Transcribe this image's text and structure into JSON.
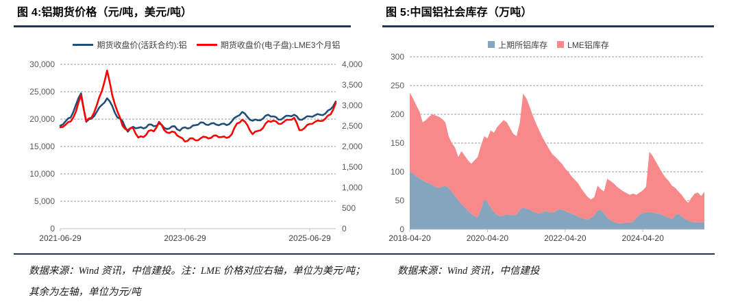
{
  "figure4": {
    "title": "图 4:铝期货价格（元/吨，美元/吨）",
    "source_note": "数据来源：Wind 资讯，中信建投。注：LME 价格对应右轴，单位为美元/吨；其余为左轴，单位为元/吨"
  },
  "figure5": {
    "title": "图 5:中国铝社会库存（万吨）",
    "source_note": "数据来源：Wind 资讯，中信建投"
  },
  "styles": {
    "accent_rule": "#17375e",
    "grid_color": "#999999",
    "axis_line_color": "#bfbfbf",
    "y_tick_label_color": "#595959",
    "x_tick_label_color": "#404040"
  },
  "chart_data": [
    {
      "type": "line",
      "title": "图 4:铝期货价格（元/吨，美元/吨）",
      "grid": "horizontal-dashed",
      "legend_position": "top-center",
      "left_axis": {
        "min": 0,
        "max": 30000,
        "unit": "元/吨",
        "tick_labels": [
          "0",
          "5,000",
          "10,000",
          "15,000",
          "20,000",
          "25,000",
          "30,000"
        ]
      },
      "right_axis": {
        "min": 0,
        "max": 4000,
        "unit": "美元/吨",
        "tick_labels": [
          "0",
          "500",
          "1,000",
          "1,500",
          "2,000",
          "2,500",
          "3,000",
          "3,500",
          "4,000"
        ]
      },
      "x_start_month": "2021-06",
      "x_tick_labels": [
        "2021-06-29",
        "2023-06-29",
        "2025-06-29"
      ],
      "x_tick_indices": [
        0,
        24,
        48
      ],
      "series": [
        {
          "name": "期货收盘价(活跃合约):铝",
          "color": "#1f4e79",
          "axis": "left",
          "values": [
            18800,
            19600,
            20300,
            22600,
            24700,
            19500,
            20100,
            21300,
            22600,
            23800,
            22400,
            20300,
            19600,
            17700,
            18600,
            18400,
            18300,
            19000,
            18700,
            19200,
            18400,
            18300,
            18700,
            17900,
            18500,
            18400,
            18900,
            19400,
            19000,
            19200,
            19000,
            19100,
            18900,
            19600,
            20500,
            21300,
            20400,
            19700,
            19800,
            20100,
            20800,
            20500,
            19900,
            20300,
            20600,
            20800,
            19900,
            20200,
            20500,
            20700,
            20800,
            21000,
            21800,
            23200
          ]
        },
        {
          "name": "期货收盘价(电子盘):LME3个月铝",
          "color": "#ff0000",
          "axis": "right",
          "values": [
            2470,
            2530,
            2610,
            2850,
            3250,
            2620,
            2700,
            3000,
            3350,
            3850,
            3250,
            2850,
            2500,
            2400,
            2450,
            2220,
            2230,
            2380,
            2370,
            2600,
            2400,
            2330,
            2350,
            2230,
            2120,
            2200,
            2150,
            2200,
            2230,
            2210,
            2270,
            2230,
            2210,
            2300,
            2560,
            2650,
            2520,
            2300,
            2380,
            2450,
            2620,
            2630,
            2550,
            2600,
            2650,
            2700,
            2400,
            2450,
            2550,
            2600,
            2620,
            2680,
            2780,
            3060
          ]
        }
      ]
    },
    {
      "type": "area",
      "stacked": true,
      "title": "图 5:中国铝社会库存（万吨）",
      "grid": "horizontal-dashed",
      "legend_position": "top-center",
      "y_axis": {
        "min": 0,
        "max": 300,
        "unit": "万吨",
        "tick_labels": [
          "0",
          "50",
          "100",
          "150",
          "200",
          "250",
          "300"
        ]
      },
      "x_start_month": "2018-04",
      "x_tick_labels": [
        "2018-04-20",
        "2020-04-20",
        "2022-04-20",
        "2024-04-20"
      ],
      "x_tick_indices": [
        0,
        24,
        48,
        72
      ],
      "series": [
        {
          "name": "上期所铝库存",
          "color": "#85a5bf",
          "values": [
            100,
            97,
            92,
            89,
            85,
            82,
            80,
            77,
            74,
            72,
            74,
            76,
            72,
            65,
            58,
            50,
            44,
            38,
            32,
            27,
            23,
            21,
            35,
            52,
            48,
            38,
            30,
            25,
            23,
            24,
            26,
            25,
            24,
            26,
            34,
            38,
            36,
            34,
            31,
            29,
            27,
            29,
            32,
            30,
            29,
            31,
            35,
            34,
            32,
            29,
            27,
            25,
            22,
            20,
            18,
            17,
            20,
            24,
            32,
            34,
            28,
            20,
            16,
            13,
            11,
            10,
            11,
            12,
            12,
            13,
            20,
            26,
            28,
            29,
            30,
            29,
            28,
            27,
            25,
            23,
            20,
            18,
            24,
            27,
            22,
            18,
            15,
            13,
            12,
            12,
            12,
            13
          ]
        },
        {
          "name": "LME铝库存",
          "color": "#f8898b",
          "values": [
            138,
            131,
            124,
            116,
            101,
            108,
            116,
            123,
            124,
            124,
            118,
            110,
            90,
            85,
            84,
            76,
            92,
            90,
            88,
            87,
            97,
            105,
            111,
            110,
            110,
            134,
            138,
            153,
            161,
            166,
            160,
            151,
            142,
            136,
            152,
            198,
            192,
            180,
            167,
            155,
            145,
            131,
            118,
            110,
            102,
            95,
            85,
            80,
            74,
            71,
            65,
            61,
            58,
            51,
            45,
            39,
            32,
            32,
            44,
            36,
            38,
            68,
            68,
            67,
            63,
            60,
            55,
            51,
            48,
            49,
            40,
            38,
            40,
            45,
            105,
            99,
            90,
            81,
            73,
            67,
            64,
            58,
            48,
            39,
            38,
            34,
            31,
            42,
            50,
            52,
            46,
            52
          ]
        }
      ]
    }
  ]
}
